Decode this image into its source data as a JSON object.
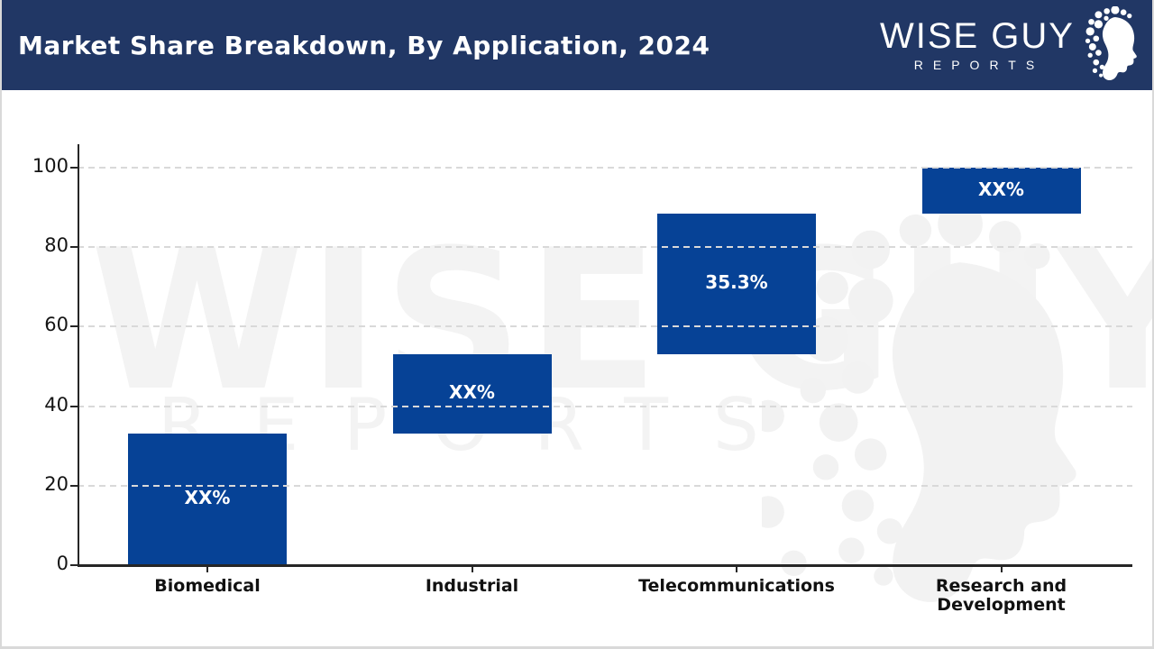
{
  "header": {
    "title": "Market Share Breakdown, By Application, 2024",
    "logo_line1": "WISE GUY",
    "logo_line2": "REPORTS"
  },
  "watermark": {
    "line1": "WISE GUY",
    "line2": "REPORTS"
  },
  "colors": {
    "header_bg": "#213765",
    "bar_fill": "#064296",
    "bar_label": "#ffffff",
    "gridline": "#d9d9d9",
    "axis": "#262626",
    "watermark": "#f3f3f3"
  },
  "chart_data": {
    "type": "bar",
    "subtype": "waterfall",
    "title": "Market Share Breakdown, By Application, 2024",
    "xlabel": "",
    "ylabel": "",
    "ylim": [
      0,
      100
    ],
    "yticks": [
      0,
      20,
      40,
      60,
      80,
      100
    ],
    "grid": "horizontal-dashed-over-bars",
    "legend": "none",
    "categories": [
      "Biomedical",
      "Industrial",
      "Telecommunications",
      "Research and Development"
    ],
    "category_labels": [
      "Biomedical",
      "Industrial",
      "Telecommunications",
      "Research and\nDevelopment"
    ],
    "values": [
      33.1,
      20.0,
      35.3,
      11.6
    ],
    "segments": [
      {
        "category": "Biomedical",
        "start": 0,
        "end": 33.1,
        "label": "XX%"
      },
      {
        "category": "Industrial",
        "start": 33.1,
        "end": 53.1,
        "label": "XX%"
      },
      {
        "category": "Telecommunications",
        "start": 53.1,
        "end": 88.4,
        "label": "35.3%"
      },
      {
        "category": "Research and Development",
        "start": 88.4,
        "end": 100,
        "label": "XX%"
      }
    ]
  }
}
